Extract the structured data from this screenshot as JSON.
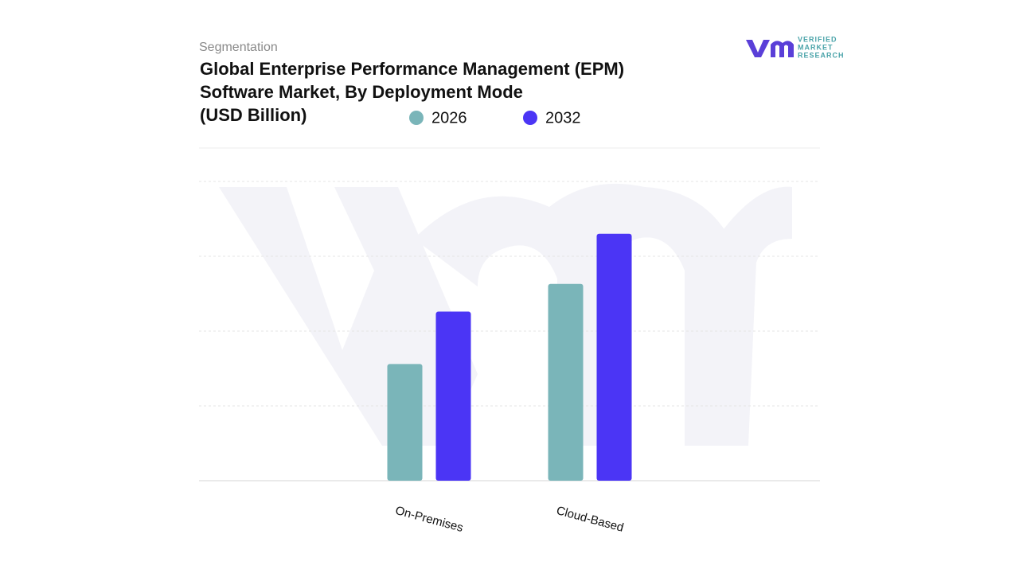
{
  "chart_data": {
    "type": "bar",
    "subtitle": "Segmentation",
    "title": [
      "Global Enterprise Performance Management (EPM)",
      "Software Market, By Deployment Mode",
      "(USD Billion)"
    ],
    "categories": [
      "On-Premises",
      "Cloud-Based"
    ],
    "series": [
      {
        "name": "2026",
        "color": "#7ab5b9",
        "values": [
          1.56,
          2.63
        ]
      },
      {
        "name": "2032",
        "color": "#4b35f5",
        "values": [
          2.26,
          3.3
        ]
      }
    ],
    "ylim": [
      0,
      4.5
    ],
    "yticks": [
      1,
      2,
      3,
      4
    ],
    "grid": true
  },
  "brand": {
    "lines": [
      "VERIFIED",
      "MARKET",
      "RESEARCH"
    ]
  }
}
